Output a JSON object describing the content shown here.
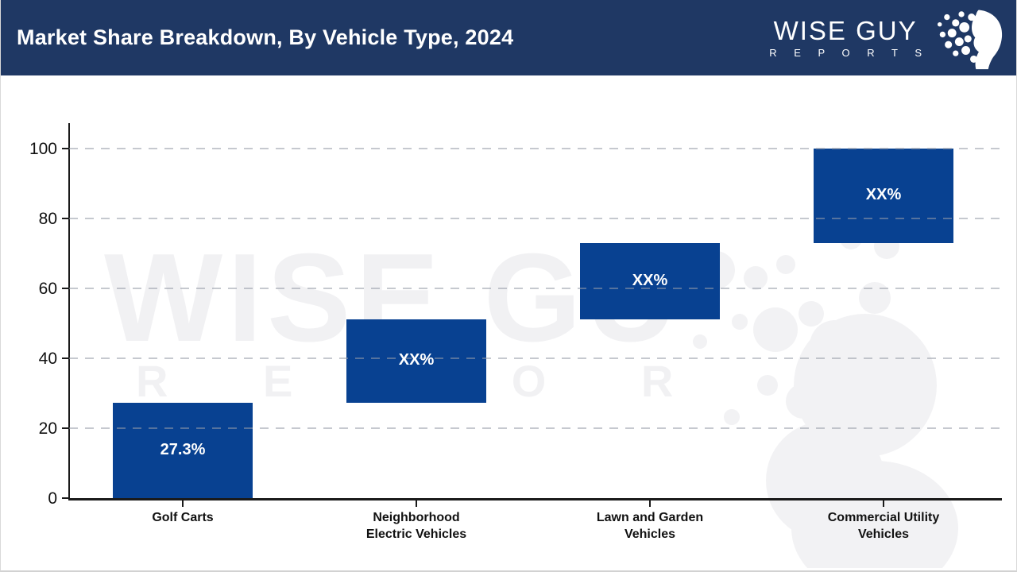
{
  "header": {
    "title": "Market Share Breakdown, By Vehicle Type, 2024",
    "bg_color": "#1f3864",
    "logo": {
      "line1": "WISE GUY",
      "line2": "R E P O R T S"
    }
  },
  "watermark": {
    "line1": "WISE GU",
    "line2": "R E P O R"
  },
  "chart_data": {
    "type": "bar",
    "subtype": "waterfall",
    "title": "Market Share Breakdown, By Vehicle Type, 2024",
    "categories": [
      [
        "Golf Carts"
      ],
      [
        "Neighborhood",
        "Electric Vehicles"
      ],
      [
        "Lawn and Garden",
        "Vehicles"
      ],
      [
        "Commercial Utility",
        "Vehicles"
      ]
    ],
    "segments": [
      {
        "category": "Golf Carts",
        "start": 0,
        "end": 27.3,
        "label": "27.3%"
      },
      {
        "category": "Neighborhood Electric Vehicles",
        "start": 27.3,
        "end": 51.2,
        "label": "XX%"
      },
      {
        "category": "Lawn and Garden Vehicles",
        "start": 51.2,
        "end": 73.0,
        "label": "XX%"
      },
      {
        "category": "Commercial Utility Vehicles",
        "start": 73.0,
        "end": 100.0,
        "label": "XX%"
      }
    ],
    "ylim": [
      0,
      100
    ],
    "yticks": [
      0,
      20,
      40,
      60,
      80,
      100
    ],
    "grid": "horizontal-dashed",
    "legend": "none",
    "bar_color": "#084191",
    "bar_label_color": "#ffffff",
    "axis_color": "#1a1a1a"
  }
}
